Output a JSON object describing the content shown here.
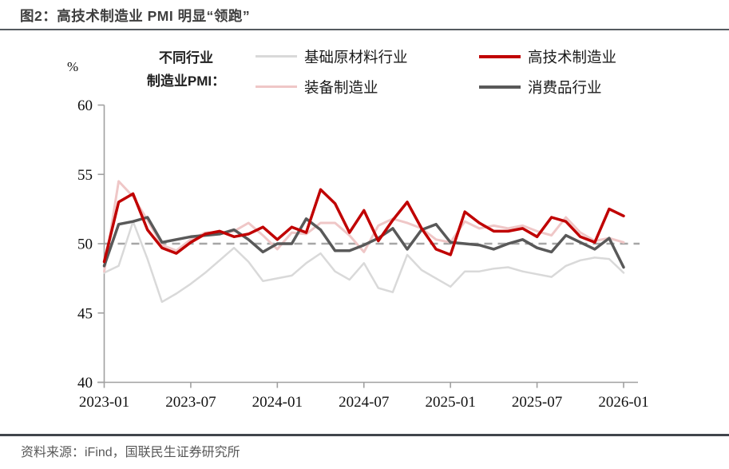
{
  "title": "图2：高技术制造业 PMI 明显“领跑”",
  "footer": {
    "source": "资料来源：iFind，国联民生证券研究所"
  },
  "legend": {
    "heading_line1": "不同行业",
    "heading_line2": "制造业PMI：",
    "items": [
      {
        "label": "基础原材料行业",
        "color": "#d9d9d9",
        "thickness": 3
      },
      {
        "label": "高技术制造业",
        "color": "#c00000",
        "thickness": 4
      },
      {
        "label": "装备制造业",
        "color": "#efc7c7",
        "thickness": 3
      },
      {
        "label": "消费品行业",
        "color": "#595959",
        "thickness": 4
      }
    ]
  },
  "chart_data": {
    "type": "line",
    "title": "不同行业制造业PMI",
    "unit": "%",
    "ylabel": "%",
    "ylim": [
      40,
      60
    ],
    "yticks": [
      40,
      45,
      50,
      55,
      60
    ],
    "reference_line": 50,
    "grid": false,
    "legend_position": "top",
    "x": [
      "2023-01",
      "2023-02",
      "2023-03",
      "2023-04",
      "2023-05",
      "2023-06",
      "2023-07",
      "2023-08",
      "2023-09",
      "2023-10",
      "2023-11",
      "2023-12",
      "2024-01",
      "2024-02",
      "2024-03",
      "2024-04",
      "2024-05",
      "2024-06",
      "2024-07",
      "2024-08",
      "2024-09",
      "2024-10",
      "2024-11",
      "2024-12",
      "2025-01",
      "2025-02",
      "2025-03",
      "2025-04",
      "2025-05",
      "2025-06",
      "2025-07",
      "2025-08",
      "2025-09",
      "2025-10",
      "2025-11",
      "2025-12",
      "2026-01"
    ],
    "x_tick_labels": [
      "2023-01",
      "2023-07",
      "2024-01",
      "2024-07",
      "2025-01",
      "2025-07",
      "2026-01"
    ],
    "series": [
      {
        "name": "基础原材料行业",
        "color": "#d9d9d9",
        "width": 2.5,
        "values": [
          47.9,
          48.4,
          51.6,
          48.9,
          45.8,
          46.4,
          47.1,
          47.9,
          48.8,
          49.7,
          48.7,
          47.3,
          47.5,
          47.7,
          48.6,
          49.3,
          48.0,
          47.4,
          48.6,
          46.8,
          46.5,
          49.2,
          48.1,
          47.5,
          46.9,
          48.0,
          48.0,
          48.2,
          48.3,
          48.0,
          47.8,
          47.6,
          48.4,
          48.8,
          49.0,
          48.9,
          47.9
        ]
      },
      {
        "name": "装备制造业",
        "color": "#efc7c7",
        "width": 3,
        "values": [
          48.0,
          54.5,
          53.4,
          51.7,
          49.9,
          49.5,
          50.3,
          50.8,
          50.8,
          50.9,
          51.5,
          50.6,
          49.6,
          50.8,
          50.7,
          51.5,
          51.5,
          50.6,
          49.4,
          51.3,
          51.8,
          51.5,
          51.1,
          50.3,
          50.1,
          51.6,
          51.1,
          51.3,
          51.1,
          51.3,
          50.9,
          50.6,
          51.9,
          50.8,
          50.2,
          50.4,
          50.1
        ]
      },
      {
        "name": "消费品行业",
        "color": "#595959",
        "width": 3.5,
        "values": [
          48.4,
          51.4,
          51.6,
          51.9,
          50.1,
          50.3,
          50.5,
          50.6,
          50.7,
          51.0,
          50.3,
          49.4,
          50.0,
          50.0,
          51.8,
          51.0,
          49.5,
          49.5,
          49.9,
          50.4,
          51.1,
          49.6,
          51.0,
          51.4,
          50.1,
          50.0,
          49.9,
          49.6,
          50.0,
          50.3,
          49.7,
          49.4,
          50.6,
          50.1,
          49.6,
          50.4,
          48.3
        ]
      },
      {
        "name": "高技术制造业",
        "color": "#c00000",
        "width": 3.5,
        "values": [
          48.7,
          53.0,
          53.6,
          51.0,
          49.7,
          49.3,
          50.1,
          50.7,
          50.9,
          50.5,
          50.7,
          51.2,
          50.3,
          51.2,
          50.8,
          53.9,
          52.9,
          50.8,
          52.4,
          50.2,
          51.7,
          53.0,
          51.1,
          49.6,
          49.2,
          52.3,
          51.5,
          50.9,
          50.9,
          51.1,
          50.5,
          51.9,
          51.6,
          50.5,
          50.1,
          52.5,
          52.0
        ]
      }
    ]
  }
}
